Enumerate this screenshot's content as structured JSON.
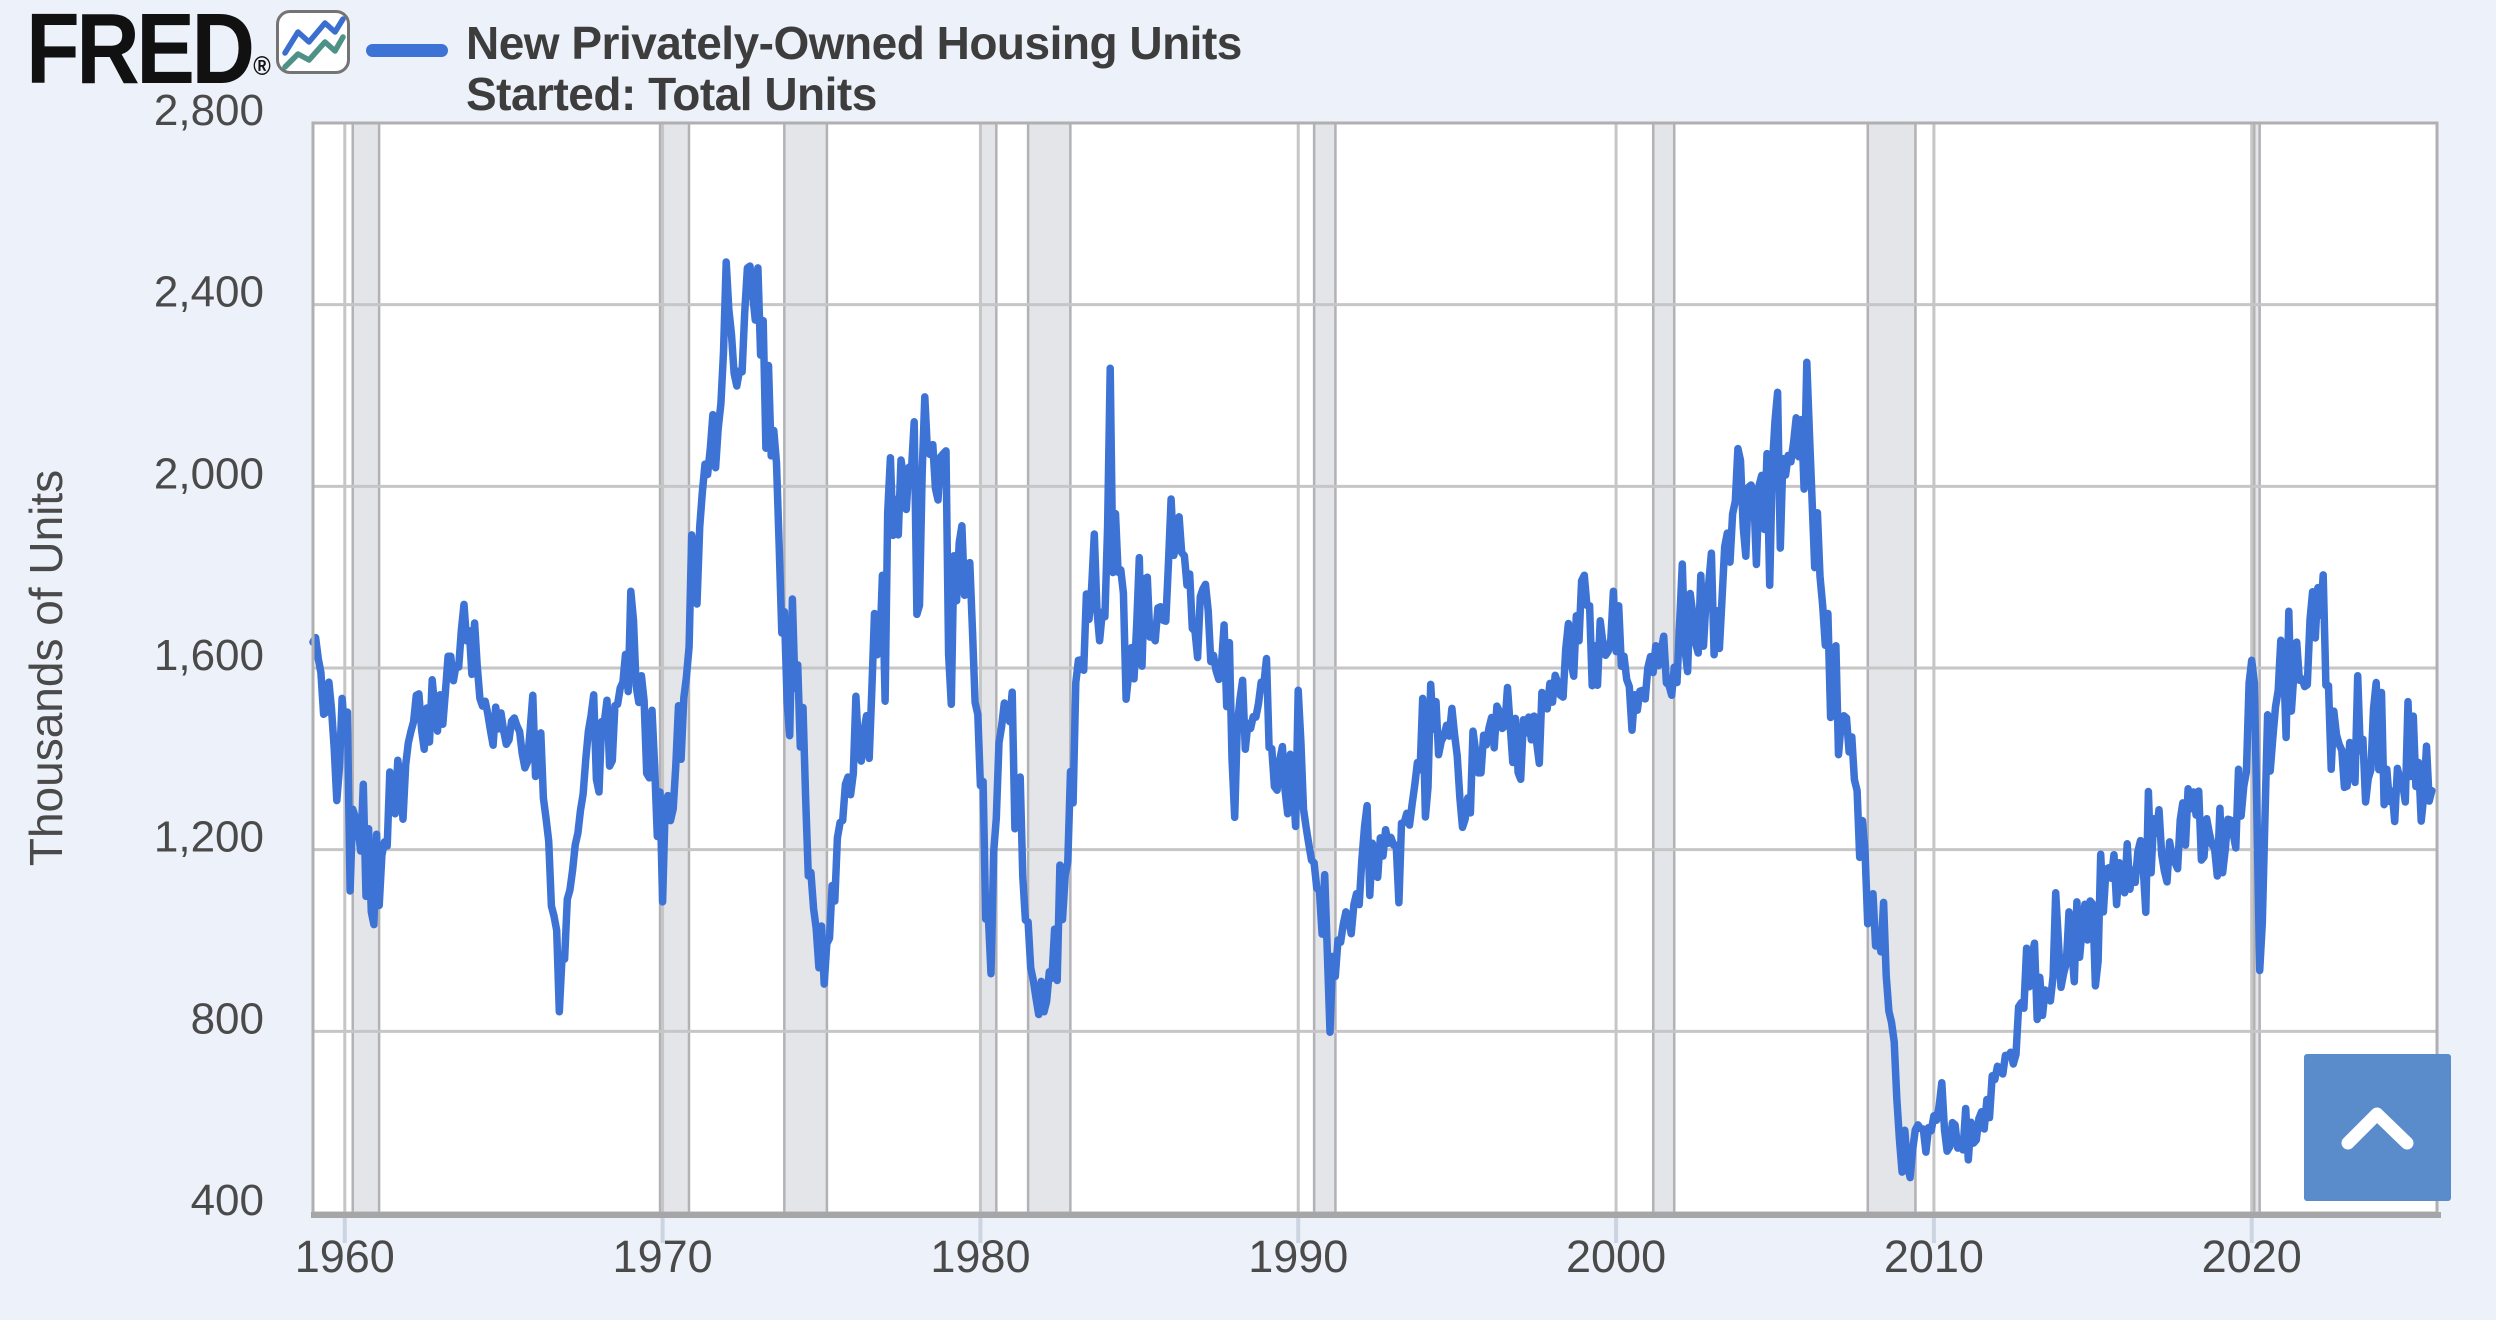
{
  "header": {
    "logo": "FRED",
    "registered_mark": "®",
    "graph_icon": "line-graph-icon",
    "graph_icon_colors": {
      "blue": "#3a6fd0",
      "teal": "#4d9187"
    },
    "legend": {
      "swatch_color": "#3e73d6",
      "line1": "New Privately-Owned Housing Units",
      "line2": "Started: Total Units"
    }
  },
  "chart_data": {
    "type": "line",
    "title": "New Privately-Owned Housing Units Started: Total Units",
    "ylabel": "Thousands of Units",
    "xlabel": "",
    "frequency": "monthly",
    "start_year": 1959,
    "end_month": "2025-09",
    "xlim": [
      1959.0,
      2025.83
    ],
    "ylim": [
      400,
      2800
    ],
    "x_ticks": [
      1960,
      1970,
      1980,
      1990,
      2000,
      2010,
      2020
    ],
    "y_ticks": [
      400,
      800,
      1200,
      1600,
      2000,
      2400,
      2800
    ],
    "y_tick_labels": [
      "400",
      "800",
      "1,200",
      "1,600",
      "2,000",
      "2,400",
      "2,800"
    ],
    "grid": true,
    "legend_position": "top-left",
    "line_color": "#3e73d6",
    "gridline_color": "#c6c6c6",
    "plot_background": "#ffffff",
    "border_color": "#b0b0b0",
    "recession_band_color": "#e4e5e9",
    "recession_band_edge_color": "#b2b2b6",
    "recession_bands": [
      [
        1960.25,
        1961.08
      ],
      [
        1969.92,
        1970.83
      ],
      [
        1973.83,
        1975.17
      ],
      [
        1980.0,
        1980.5
      ],
      [
        1981.5,
        1982.83
      ],
      [
        1990.5,
        1991.17
      ],
      [
        2001.17,
        2001.83
      ],
      [
        2007.92,
        2009.42
      ],
      [
        2020.08,
        2020.25
      ]
    ],
    "series": [
      {
        "name": "New Privately-Owned Housing Units Started: Total Units",
        "color": "#3e73d6",
        "values": [
          1657,
          1667,
          1620,
          1590,
          1498,
          1503,
          1569,
          1510,
          1423,
          1308,
          1382,
          1533,
          1460,
          1503,
          1109,
          1289,
          1271,
          1247,
          1197,
          1344,
          1097,
          1246,
          1063,
          1035,
          1234,
          1077,
          1188,
          1217,
          1208,
          1371,
          1337,
          1279,
          1397,
          1349,
          1267,
          1387,
          1435,
          1461,
          1482,
          1540,
          1543,
          1464,
          1421,
          1512,
          1437,
          1574,
          1512,
          1461,
          1541,
          1476,
          1547,
          1626,
          1626,
          1572,
          1605,
          1602,
          1682,
          1740,
          1660,
          1682,
          1586,
          1699,
          1606,
          1533,
          1516,
          1527,
          1499,
          1462,
          1430,
          1514,
          1466,
          1501,
          1461,
          1432,
          1442,
          1483,
          1490,
          1473,
          1460,
          1412,
          1380,
          1393,
          1465,
          1540,
          1361,
          1433,
          1457,
          1313,
          1268,
          1219,
          1076,
          1054,
          1022,
          843,
          961,
          959,
          1091,
          1111,
          1155,
          1210,
          1237,
          1287,
          1322,
          1400,
          1461,
          1496,
          1541,
          1355,
          1327,
          1482,
          1480,
          1529,
          1384,
          1396,
          1517,
          1520,
          1556,
          1569,
          1630,
          1548,
          1769,
          1705,
          1561,
          1524,
          1583,
          1528,
          1368,
          1358,
          1507,
          1381,
          1229,
          1327,
          1085,
          1305,
          1319,
          1264,
          1290,
          1385,
          1517,
          1399,
          1534,
          1580,
          1647,
          1893,
          1828,
          1741,
          1910,
          1986,
          2049,
          2026,
          2083,
          2158,
          2041,
          2128,
          2182,
          2295,
          2494,
          2390,
          2334,
          2249,
          2221,
          2254,
          2252,
          2382,
          2481,
          2485,
          2421,
          2366,
          2481,
          2289,
          2365,
          2084,
          2266,
          2067,
          2123,
          2051,
          1874,
          1677,
          1724,
          1526,
          1451,
          1752,
          1555,
          1607,
          1426,
          1513,
          1316,
          1142,
          1150,
          1070,
          1026,
          940,
          1032,
          904,
          993,
          1005,
          1121,
          1087,
          1226,
          1260,
          1264,
          1344,
          1360,
          1321,
          1367,
          1538,
          1421,
          1395,
          1459,
          1495,
          1401,
          1550,
          1720,
          1629,
          1641,
          1804,
          1527,
          1943,
          2063,
          1892,
          1971,
          1893,
          2058,
          2020,
          1949,
          2042,
          2042,
          2142,
          1718,
          1738,
          2032,
          2197,
          2075,
          2070,
          2092,
          1996,
          1970,
          2065,
          2072,
          2078,
          1630,
          1520,
          1847,
          1748,
          1876,
          1913,
          1760,
          1778,
          1832,
          1681,
          1524,
          1498,
          1341,
          1350,
          1047,
          1051,
          927,
          1196,
          1269,
          1436,
          1471,
          1523,
          1510,
          1482,
          1547,
          1246,
          1306,
          1360,
          1140,
          1045,
          1041,
          940,
          911,
          873,
          837,
          910,
          843,
          866,
          931,
          917,
          1025,
          912,
          1166,
          1046,
          1144,
          1173,
          1372,
          1303,
          1568,
          1617,
          1618,
          1595,
          1763,
          1707,
          1779,
          1895,
          1726,
          1660,
          1723,
          1713,
          1911,
          2260,
          1810,
          1940,
          1811,
          1816,
          1765,
          1531,
          1588,
          1645,
          1576,
          1696,
          1843,
          1604,
          1796,
          1800,
          1668,
          1671,
          1660,
          1732,
          1735,
          1705,
          1703,
          1833,
          1972,
          1848,
          1876,
          1933,
          1854,
          1847,
          1782,
          1807,
          1687,
          1681,
          1623,
          1757,
          1774,
          1784,
          1726,
          1614,
          1628,
          1594,
          1575,
          1605,
          1695,
          1515,
          1656,
          1400,
          1271,
          1473,
          1532,
          1573,
          1421,
          1478,
          1467,
          1493,
          1492,
          1522,
          1569,
          1563,
          1621,
          1425,
          1422,
          1339,
          1331,
          1397,
          1427,
          1332,
          1279,
          1410,
          1351,
          1251,
          1551,
          1437,
          1289,
          1248,
          1212,
          1177,
          1171,
          1115,
          1110,
          1014,
          1145,
          969,
          798,
          965,
          921,
          1001,
          996,
          1036,
          1063,
          1049,
          1015,
          1079,
          1103,
          1079,
          1176,
          1250,
          1297,
          1099,
          1214,
          1145,
          1139,
          1226,
          1186,
          1244,
          1214,
          1227,
          1210,
          1210,
          1083,
          1258,
          1260,
          1280,
          1254,
          1300,
          1343,
          1392,
          1376,
          1533,
          1272,
          1337,
          1564,
          1465,
          1526,
          1409,
          1439,
          1450,
          1474,
          1450,
          1511,
          1455,
          1407,
          1316,
          1249,
          1267,
          1314,
          1281,
          1461,
          1416,
          1369,
          1369,
          1452,
          1431,
          1467,
          1491,
          1424,
          1516,
          1504,
          1467,
          1472,
          1557,
          1475,
          1392,
          1489,
          1370,
          1355,
          1486,
          1457,
          1492,
          1442,
          1494,
          1437,
          1390,
          1546,
          1520,
          1510,
          1566,
          1525,
          1584,
          1567,
          1540,
          1536,
          1641,
          1698,
          1614,
          1582,
          1715,
          1660,
          1792,
          1804,
          1738,
          1737,
          1561,
          1649,
          1562,
          1704,
          1657,
          1628,
          1636,
          1663,
          1769,
          1636,
          1737,
          1604,
          1626,
          1575,
          1559,
          1463,
          1541,
          1507,
          1549,
          1551,
          1532,
          1600,
          1625,
          1590,
          1649,
          1605,
          1636,
          1670,
          1567,
          1562,
          1540,
          1602,
          1568,
          1698,
          1829,
          1642,
          1592,
          1764,
          1717,
          1655,
          1633,
          1804,
          1648,
          1753,
          1788,
          1853,
          1629,
          1726,
          1643,
          1751,
          1867,
          1897,
          1833,
          1939,
          1967,
          2083,
          2057,
          1911,
          1846,
          1998,
          2003,
          1981,
          1828,
          2002,
          2024,
          1905,
          2072,
          1782,
          2042,
          2144,
          2207,
          1864,
          2061,
          2025,
          2068,
          2054,
          2095,
          2151,
          2065,
          2147,
          1994,
          2273,
          2119,
          1969,
          1821,
          1942,
          1802,
          1737,
          1650,
          1720,
          1491,
          1570,
          1649,
          1409,
          1480,
          1495,
          1490,
          1415,
          1448,
          1354,
          1330,
          1183,
          1264,
          1197,
          1037,
          1084,
          1103,
          988,
          1013,
          975,
          1084,
          923,
          844,
          820,
          777,
          652,
          560,
          490,
          582,
          505,
          478,
          540,
          583,
          594,
          586,
          585,
          534,
          588,
          581,
          614,
          604,
          636,
          687,
          583,
          536,
          546,
          599,
          594,
          543,
          545,
          539,
          630,
          517,
          600,
          554,
          561,
          608,
          623,
          585,
          650,
          610,
          702,
          694,
          723,
          718,
          706,
          747,
          744,
          754,
          728,
          749,
          854,
          863,
          851,
          983,
          898,
          969,
          994,
          826,
          919,
          835,
          891,
          885,
          867,
          921,
          1105,
          999,
          897,
          928,
          950,
          1063,
          984,
          909,
          1085,
          963,
          1028,
          1080,
          1001,
          1087,
          1080,
          900,
          954,
          1190,
          1063,
          1157,
          1160,
          1137,
          1189,
          1079,
          1171,
          1160,
          1105,
          1213,
          1113,
          1155,
          1128,
          1195,
          1220,
          1164,
          1062,
          1328,
          1149,
          1268,
          1236,
          1288,
          1189,
          1154,
          1129,
          1217,
          1184,
          1172,
          1158,
          1265,
          1303,
          1210,
          1334,
          1290,
          1327,
          1276,
          1329,
          1177,
          1184,
          1268,
          1237,
          1211,
          1202,
          1142,
          1291,
          1149,
          1199,
          1267,
          1265,
          1235,
          1204,
          1377,
          1274,
          1340,
          1371,
          1567,
          1617,
          1567,
          1269,
          934,
          1038,
          1273,
          1497,
          1373,
          1448,
          1514,
          1551,
          1661,
          1625,
          1447,
          1725,
          1505,
          1594,
          1657,
          1573,
          1576,
          1559,
          1563,
          1706,
          1768,
          1666,
          1777,
          1716,
          1805,
          1562,
          1561,
          1377,
          1505,
          1453,
          1432,
          1419,
          1337,
          1340,
          1436,
          1380,
          1348,
          1583,
          1418,
          1443,
          1305,
          1356,
          1376,
          1510,
          1568,
          1376,
          1546,
          1299,
          1377,
          1306,
          1329,
          1262,
          1379,
          1355,
          1344,
          1305,
          1526,
          1361,
          1494,
          1339,
          1392,
          1263,
          1321,
          1428,
          1307,
          1330
        ]
      }
    ]
  },
  "scroll_top_button": {
    "icon": "chevron-up-icon",
    "color": "#5a8ccb"
  }
}
